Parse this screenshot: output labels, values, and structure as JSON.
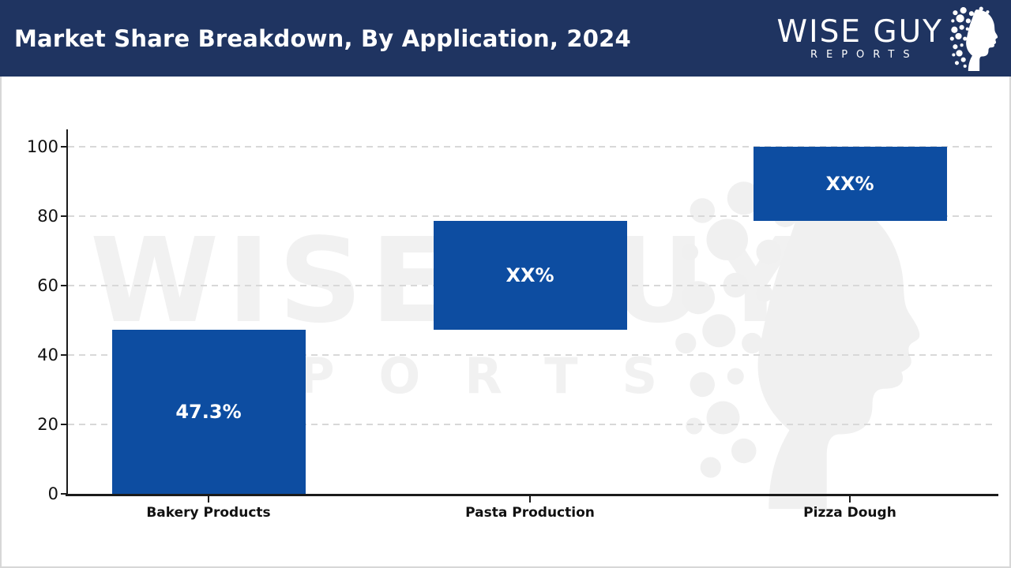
{
  "header": {
    "title": "Market Share Breakdown, By Application, 2024",
    "bg_color": "#1f3461",
    "logo": {
      "line1": "WISE GUY",
      "line2": "REPORTS",
      "head_icon": "dotted-head-profile-icon"
    }
  },
  "watermark": {
    "line1": "WISE GUY",
    "line2": "REPORTS",
    "head_icon": "dotted-head-profile-icon",
    "color": "#f1f1f1"
  },
  "chart_data": {
    "type": "bar",
    "subtype": "floating-waterfall",
    "title": "Market Share Breakdown, By Application, 2024",
    "categories": [
      "Bakery Products",
      "Pasta Production",
      "Pizza Dough"
    ],
    "segments": [
      {
        "category": "Bakery Products",
        "start": 0,
        "end": 47.3,
        "label": "47.3%"
      },
      {
        "category": "Pasta Production",
        "start": 47.3,
        "end": 78.6,
        "label": "XX%"
      },
      {
        "category": "Pizza Dough",
        "start": 78.6,
        "end": 100,
        "label": "XX%"
      }
    ],
    "xlabel": "",
    "ylabel": "",
    "ylim": [
      0,
      105
    ],
    "yticks": [
      0,
      20,
      40,
      60,
      80,
      100
    ],
    "grid": "dashed-horizontal-light-gray",
    "legend": "none",
    "bar_color": "#0d4da1",
    "bar_label_color": "#ffffff",
    "axis_color": "#1b1b1b",
    "grid_color": "#d8d8d8"
  }
}
